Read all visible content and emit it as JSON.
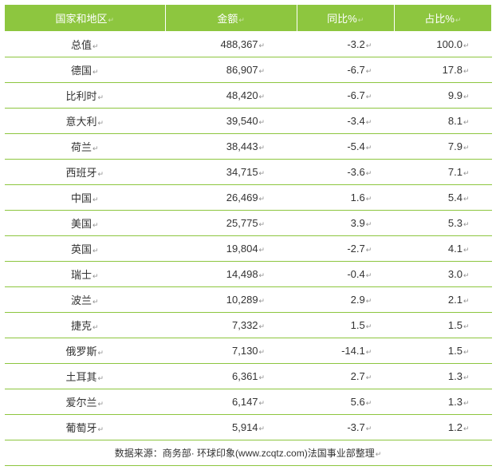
{
  "type": "table",
  "header_bg": "#8dc63f",
  "header_text_color": "#ffffff",
  "border_color": "#8dc63f",
  "cell_text_color": "#333333",
  "glyph": "↵",
  "columns": [
    "国家和地区",
    "金额",
    "同比%",
    "占比%"
  ],
  "rows": [
    [
      "总值",
      "488,367",
      "-3.2",
      "100.0"
    ],
    [
      "德国",
      "86,907",
      "-6.7",
      "17.8"
    ],
    [
      "比利时",
      "48,420",
      "-6.7",
      "9.9"
    ],
    [
      "意大利",
      "39,540",
      "-3.4",
      "8.1"
    ],
    [
      "荷兰",
      "38,443",
      "-5.4",
      "7.9"
    ],
    [
      "西班牙",
      "34,715",
      "-3.6",
      "7.1"
    ],
    [
      "中国",
      "26,469",
      "1.6",
      "5.4"
    ],
    [
      "美国",
      "25,775",
      "3.9",
      "5.3"
    ],
    [
      "英国",
      "19,804",
      "-2.7",
      "4.1"
    ],
    [
      "瑞士",
      "14,498",
      "-0.4",
      "3.0"
    ],
    [
      "波兰",
      "10,289",
      "2.9",
      "2.1"
    ],
    [
      "捷克",
      "7,332",
      "1.5",
      "1.5"
    ],
    [
      "俄罗斯",
      "7,130",
      "-14.1",
      "1.5"
    ],
    [
      "土耳其",
      "6,361",
      "2.7",
      "1.3"
    ],
    [
      "爱尔兰",
      "6,147",
      "5.6",
      "1.3"
    ],
    [
      "葡萄牙",
      "5,914",
      "-3.7",
      "1.2"
    ]
  ],
  "footer": "数据来源：商务部· 环球印象(www.zcqtz.com)法国事业部整理"
}
